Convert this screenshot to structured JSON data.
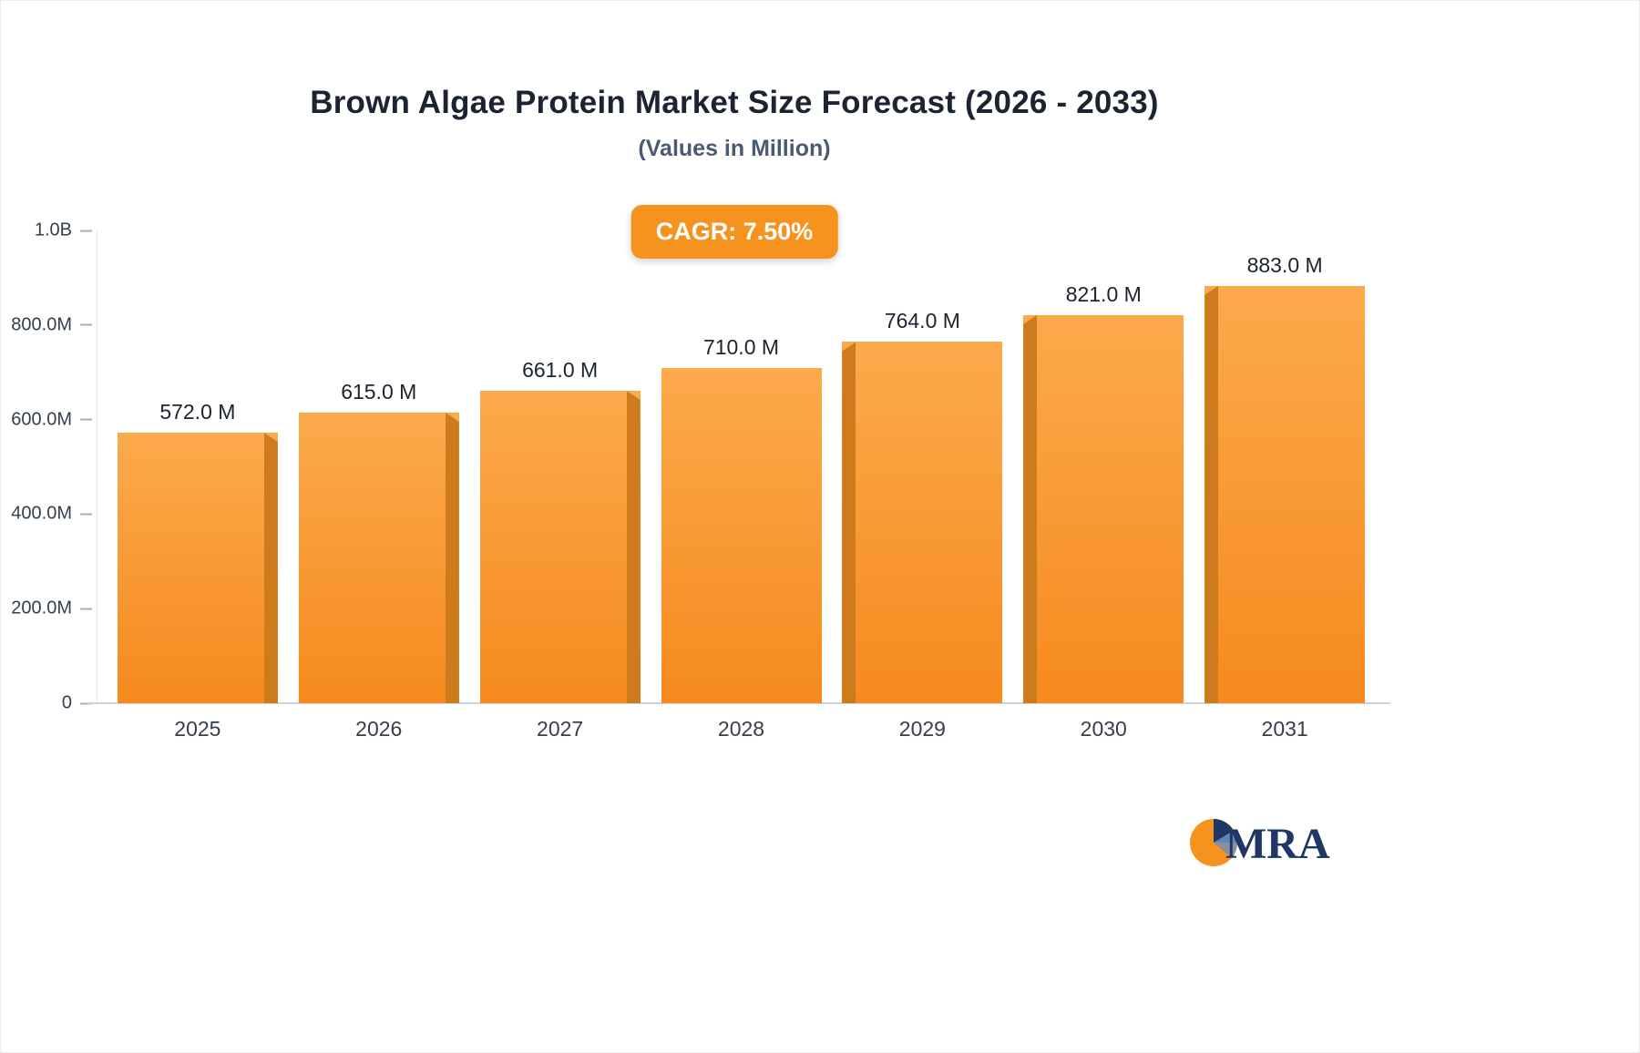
{
  "chart_data": {
    "type": "bar",
    "title": "Brown Algae Protein Market Size Forecast (2026 - 2033)",
    "subtitle": "(Values in Million)",
    "badge_label": "CAGR: 7.50%",
    "categories": [
      "2025",
      "2026",
      "2027",
      "2028",
      "2029",
      "2030",
      "2031"
    ],
    "values": [
      572.0,
      615.0,
      661.0,
      710.0,
      764.0,
      821.0,
      883.0
    ],
    "value_labels": [
      "572.0 M",
      "615.0 M",
      "661.0 M",
      "710.0 M",
      "764.0 M",
      "821.0 M",
      "883.0 M"
    ],
    "ylim": [
      0,
      1000
    ],
    "yticks": [
      1000,
      800,
      600,
      400,
      200,
      0
    ],
    "ytick_labels": [
      "1.0B",
      "800.0M",
      "600.0M",
      "400.0M",
      "200.0M",
      "0"
    ],
    "xlabel": "",
    "ylabel": "",
    "grid": false,
    "legend": "none",
    "colors": {
      "bar_face_top": "#fbaa4c",
      "bar_face_bottom": "#f68a1e",
      "bar_side": "#cd7b1c",
      "badge_bg": "#f6921e",
      "badge_text": "#ffffff",
      "title": "#1c2433",
      "subtitle": "#4a5a74",
      "axis_text": "#333f4e",
      "baseline": "#cfd4da"
    }
  },
  "logo": {
    "text": "MRA"
  }
}
